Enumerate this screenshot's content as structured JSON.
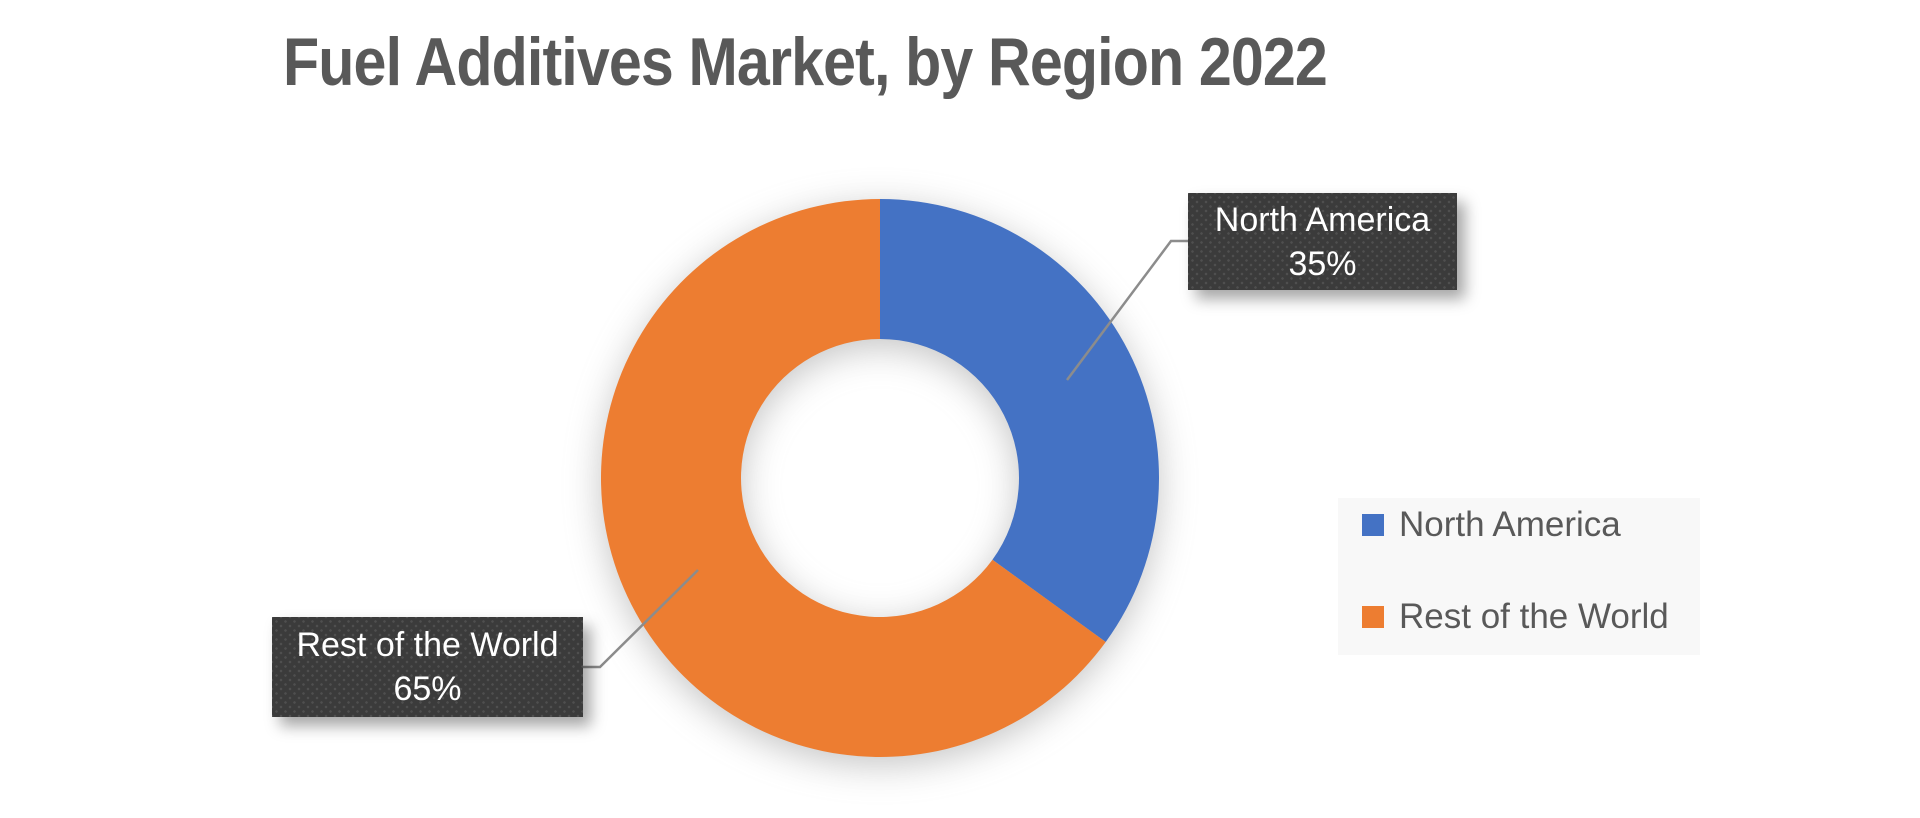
{
  "title": "Fuel Additives Market, by Region 2022",
  "chart_data": {
    "type": "pie",
    "subtype": "donut",
    "title": "Fuel Additives Market, by Region 2022",
    "categories": [
      "North America",
      "Rest of the World"
    ],
    "values": [
      35,
      65
    ],
    "unit": "%",
    "colors": [
      "#4472C4",
      "#ED7D31"
    ],
    "start_angle_deg": 0,
    "direction": "clockwise",
    "donut_hole_ratio": 0.5,
    "legend_position": "right",
    "data_labels": [
      "North America 35%",
      "Rest of the World 65%"
    ]
  },
  "callouts": [
    {
      "label": "North America",
      "value_text": "35%"
    },
    {
      "label": "Rest of the World",
      "value_text": "65%"
    }
  ],
  "legend": {
    "items": [
      {
        "label": "North America",
        "color": "#4472C4"
      },
      {
        "label": "Rest of the World",
        "color": "#ED7D31"
      }
    ]
  },
  "colors": {
    "background": "#FFFFFF",
    "title_text": "#595959",
    "callout_bg": "#3B3B3B",
    "callout_text": "#FFFFFF",
    "leader_line": "#8C8C8C",
    "legend_panel_bg": "#F8F8F8",
    "legend_text": "#595959"
  }
}
